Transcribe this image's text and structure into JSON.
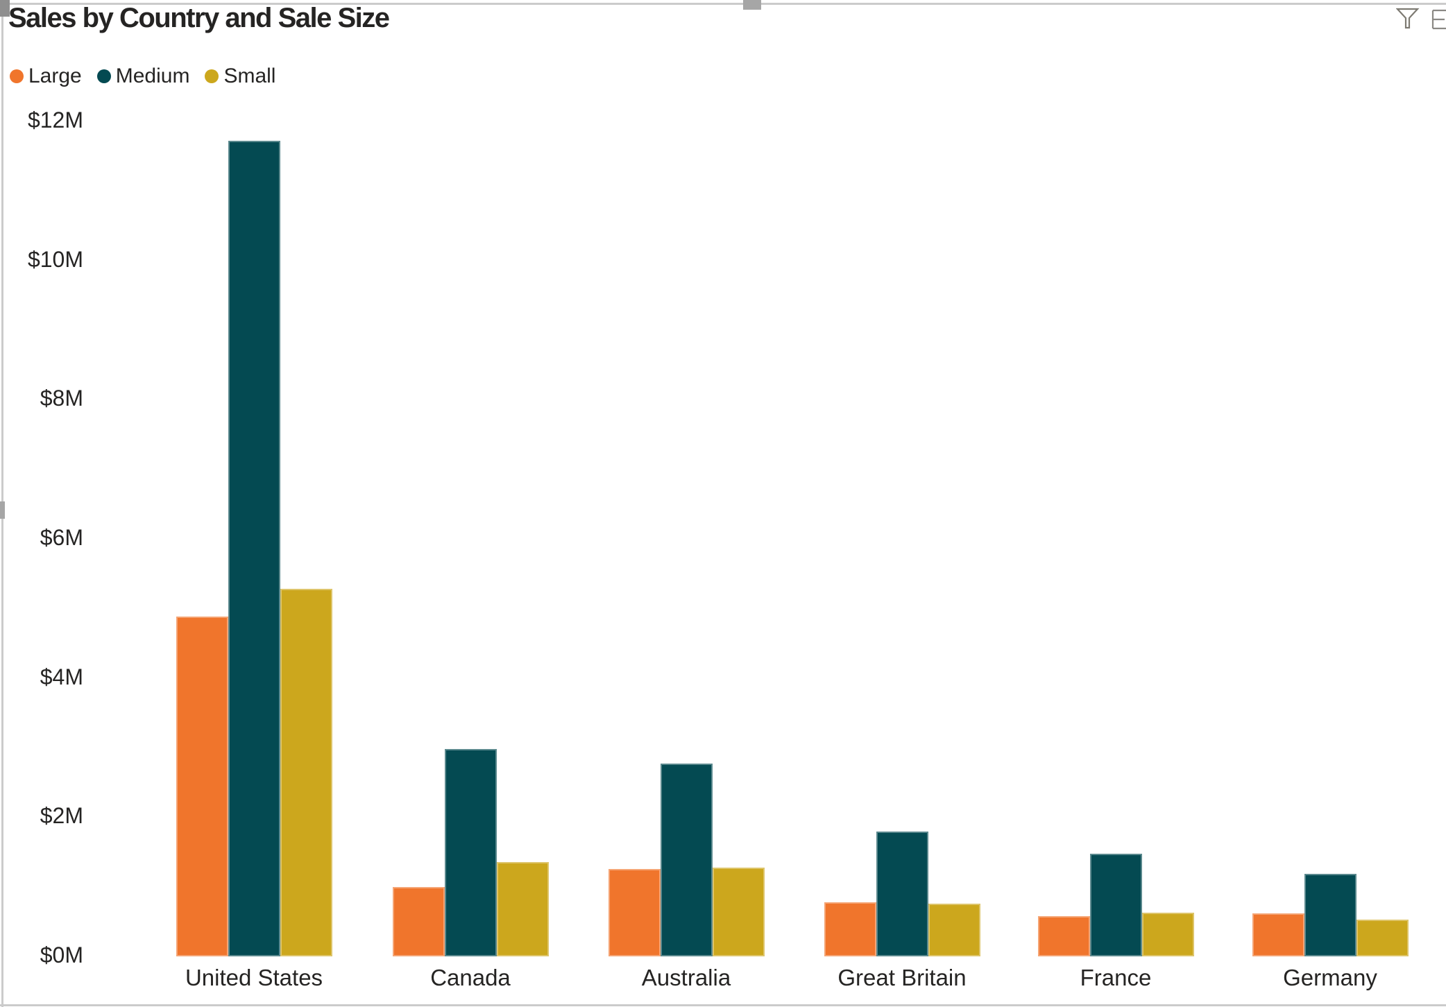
{
  "title": "Sales by Country and Sale Size",
  "toolbar": {
    "filter_icon": "filter-funnel",
    "more_icon": "options-partial"
  },
  "legend": {
    "position": "top-left",
    "items": [
      {
        "label": "Large",
        "color": "#F0752C"
      },
      {
        "label": "Medium",
        "color": "#044A52"
      },
      {
        "label": "Small",
        "color": "#CCA71D"
      }
    ]
  },
  "chart_data": {
    "type": "bar",
    "title": "Sales by Country and Sale Size",
    "categories": [
      "United States",
      "Canada",
      "Australia",
      "Great Britain",
      "France",
      "Germany"
    ],
    "series": [
      {
        "name": "Large",
        "color": "#F0752C",
        "values": [
          4.88,
          1.0,
          1.26,
          0.78,
          0.58,
          0.62
        ]
      },
      {
        "name": "Medium",
        "color": "#044A52",
        "values": [
          11.72,
          2.98,
          2.77,
          1.79,
          1.48,
          1.19
        ]
      },
      {
        "name": "Small",
        "color": "#CCA71D",
        "values": [
          5.28,
          1.36,
          1.28,
          0.76,
          0.63,
          0.53
        ]
      }
    ],
    "value_unit": "USD millions",
    "y_ticks": [
      "$0M",
      "$2M",
      "$4M",
      "$6M",
      "$8M",
      "$10M",
      "$12M"
    ],
    "tick_values": [
      0,
      2,
      4,
      6,
      8,
      10,
      12
    ],
    "ylim": [
      0,
      12
    ],
    "grid": false,
    "legend_position": "top-left"
  }
}
